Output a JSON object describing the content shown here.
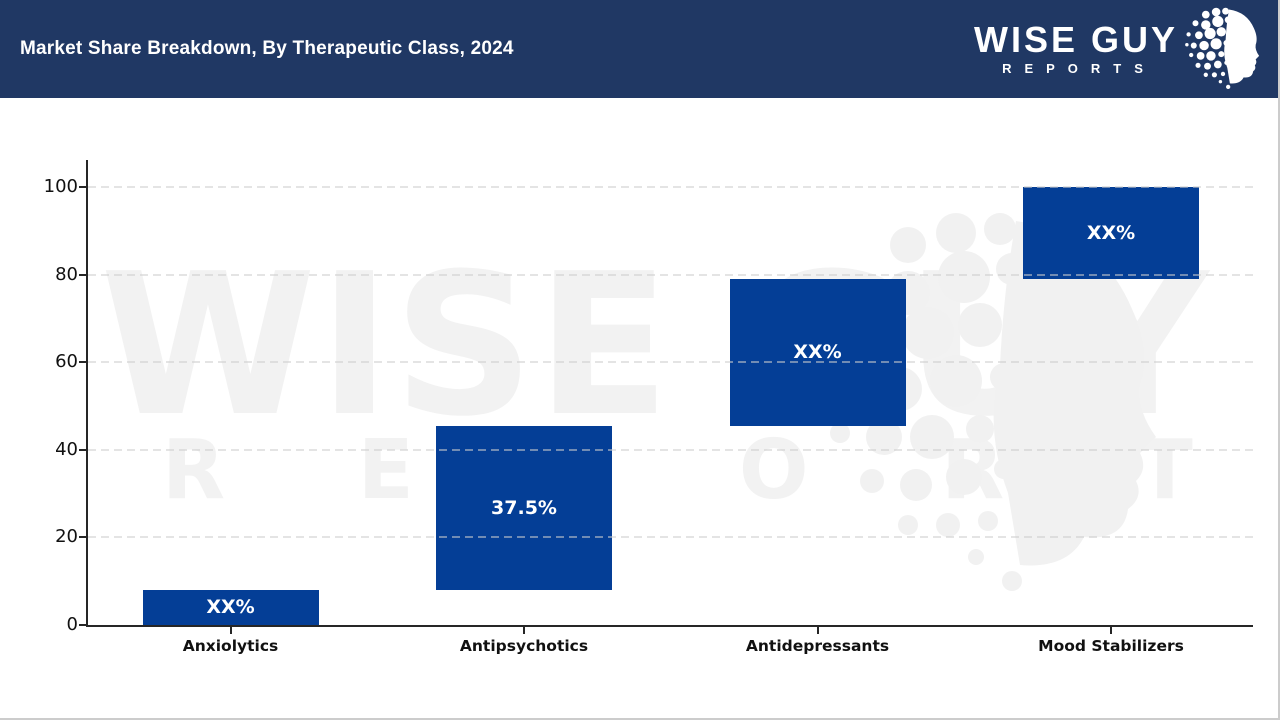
{
  "header": {
    "title": "Market Share Breakdown, By Therapeutic Class, 2024",
    "logo": {
      "line1": "WISE GUY",
      "line2": "REPORTS"
    }
  },
  "watermark": {
    "line1": "WISE GUY",
    "line2": "R E P O R T S"
  },
  "chart_data": {
    "type": "bar",
    "subtype": "waterfall",
    "title": "Market Share Breakdown, By Therapeutic Class, 2024",
    "categories": [
      "Anxiolytics",
      "Antipsychotics",
      "Antidepressants",
      "Mood Stabilizers"
    ],
    "bars": [
      {
        "category": "Anxiolytics",
        "start": 0,
        "end": 8,
        "label": "XX%"
      },
      {
        "category": "Antipsychotics",
        "start": 8,
        "end": 45.5,
        "label": "37.5%"
      },
      {
        "category": "Antidepressants",
        "start": 45.5,
        "end": 79,
        "label": "XX%"
      },
      {
        "category": "Mood Stabilizers",
        "start": 79,
        "end": 100,
        "label": "XX%"
      }
    ],
    "xlabel": "",
    "ylabel": "",
    "ylim": [
      0,
      106
    ],
    "yticks": [
      0,
      20,
      40,
      60,
      80,
      100
    ],
    "grid": "horizontal-dashed",
    "legend": "none",
    "colors": {
      "bar": "#043e96",
      "header_bg": "#203864",
      "axis": "#262626",
      "grid": "#d9d9d9",
      "watermark": "#f2f2f2",
      "bar_label": "#ffffff"
    }
  }
}
